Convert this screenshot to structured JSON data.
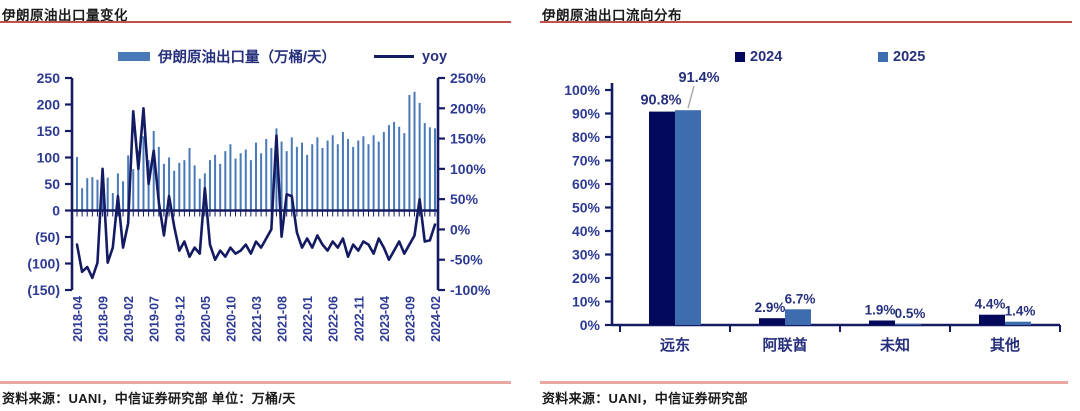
{
  "colors": {
    "title_rule": "#c0504d",
    "source_rule": "#e9a7a1",
    "axis_stroke": "#141b63",
    "axis_text": "#2c3a94",
    "bar_thin": "#4a79b8",
    "line_yoy": "#141b63",
    "bar_2024": "#05095c",
    "bar_2025": "#3d6dae",
    "label_navy": "#26307c",
    "leader_gray": "#a6a6a6"
  },
  "left": {
    "title": "伊朗原油出口量变化",
    "legend": {
      "bar_label": "伊朗原油出口量（万桶/天）",
      "line_label": "yoy"
    },
    "source": "资料来源：UANI，中信证券研究部 单位：万桶/天"
  },
  "right": {
    "title": "伊朗原油出口流向分布",
    "source": "资料来源：UANI，中信证券研究部"
  },
  "chart_data": [
    {
      "type": "combo-bar-line",
      "title": "伊朗原油出口量变化",
      "x": [
        "2018-04",
        "2018-05",
        "2018-06",
        "2018-07",
        "2018-08",
        "2018-09",
        "2018-10",
        "2018-11",
        "2018-12",
        "2019-01",
        "2019-02",
        "2019-03",
        "2019-04",
        "2019-05",
        "2019-06",
        "2019-07",
        "2019-08",
        "2019-09",
        "2019-10",
        "2019-11",
        "2019-12",
        "2020-01",
        "2020-02",
        "2020-03",
        "2020-04",
        "2020-05",
        "2020-06",
        "2020-07",
        "2020-08",
        "2020-09",
        "2020-10",
        "2020-11",
        "2020-12",
        "2021-01",
        "2021-02",
        "2021-03",
        "2021-04",
        "2021-05",
        "2021-06",
        "2021-07",
        "2021-08",
        "2021-09",
        "2021-10",
        "2021-11",
        "2021-12",
        "2022-01",
        "2022-02",
        "2022-03",
        "2022-04",
        "2022-05",
        "2022-06",
        "2022-07",
        "2022-08",
        "2022-09",
        "2022-10",
        "2022-11",
        "2022-12",
        "2023-01",
        "2023-02",
        "2023-03",
        "2023-04",
        "2023-05",
        "2023-06",
        "2023-07",
        "2023-08",
        "2023-09",
        "2023-10",
        "2023-11",
        "2023-12",
        "2024-01",
        "2024-02"
      ],
      "x_tick_labels": [
        "2018-04",
        "2018-09",
        "2019-02",
        "2019-07",
        "2019-12",
        "2020-05",
        "2020-10",
        "2021-03",
        "2021-08",
        "2022-01",
        "2022-06",
        "2022-11",
        "2023-04",
        "2023-09",
        "2024-02"
      ],
      "series": [
        {
          "name": "伊朗原油出口量（万桶/天）",
          "type": "bar",
          "axis": "left",
          "values": [
            101,
            42,
            61,
            63,
            58,
            66,
            62,
            33,
            70,
            55,
            104,
            78,
            112,
            140,
            95,
            150,
            120,
            88,
            100,
            75,
            90,
            95,
            118,
            85,
            60,
            70,
            95,
            105,
            88,
            112,
            125,
            98,
            108,
            115,
            95,
            128,
            108,
            135,
            118,
            155,
            130,
            112,
            138,
            120,
            128,
            105,
            125,
            138,
            118,
            132,
            142,
            125,
            148,
            135,
            120,
            132,
            140,
            125,
            142,
            130,
            148,
            161,
            167,
            158,
            146,
            218,
            224,
            203,
            165,
            157,
            155
          ]
        },
        {
          "name": "yoy",
          "type": "line",
          "axis": "right",
          "values": [
            -25,
            -70,
            -62,
            -80,
            -55,
            100,
            -55,
            -30,
            55,
            -30,
            10,
            195,
            100,
            200,
            75,
            130,
            45,
            -10,
            55,
            5,
            -35,
            -20,
            -45,
            -30,
            -40,
            68,
            -25,
            -50,
            -35,
            -45,
            -30,
            -40,
            -35,
            -25,
            -40,
            -20,
            -30,
            -15,
            0,
            155,
            -12,
            58,
            55,
            -5,
            -30,
            -15,
            -30,
            -10,
            -25,
            -35,
            -20,
            -30,
            -15,
            -45,
            -25,
            -35,
            -20,
            -25,
            -40,
            -15,
            -30,
            -50,
            -35,
            -20,
            -40,
            -25,
            -10,
            50,
            -20,
            -18,
            8
          ]
        }
      ],
      "left_axis": {
        "ticks": [
          "250",
          "200",
          "150",
          "100",
          "50",
          "0",
          "(50)",
          "(100)",
          "(150)"
        ],
        "min": -150,
        "max": 250,
        "unit": "万桶/天"
      },
      "right_axis": {
        "ticks": [
          "250%",
          "200%",
          "150%",
          "100%",
          "50%",
          "0%",
          "-50%",
          "-100%"
        ],
        "min": -100,
        "max": 250,
        "unit": "%"
      },
      "grid": false,
      "legend_position": "top"
    },
    {
      "type": "bar",
      "title": "伊朗原油出口流向分布",
      "categories": [
        "远东",
        "阿联酋",
        "未知",
        "其他"
      ],
      "series": [
        {
          "name": "2024",
          "values": [
            90.8,
            2.9,
            1.9,
            4.4
          ],
          "labels": [
            "90.8%",
            "2.9%",
            "1.9%",
            "4.4%"
          ]
        },
        {
          "name": "2025",
          "values": [
            91.4,
            6.7,
            0.5,
            1.4
          ],
          "labels": [
            "91.4%",
            "6.7%",
            "0.5%",
            "1.4%"
          ]
        }
      ],
      "y_axis": {
        "ticks": [
          "0%",
          "10%",
          "20%",
          "30%",
          "40%",
          "50%",
          "60%",
          "70%",
          "80%",
          "90%",
          "100%"
        ],
        "min": 0,
        "max": 100
      },
      "grid": false,
      "legend_position": "top"
    }
  ]
}
